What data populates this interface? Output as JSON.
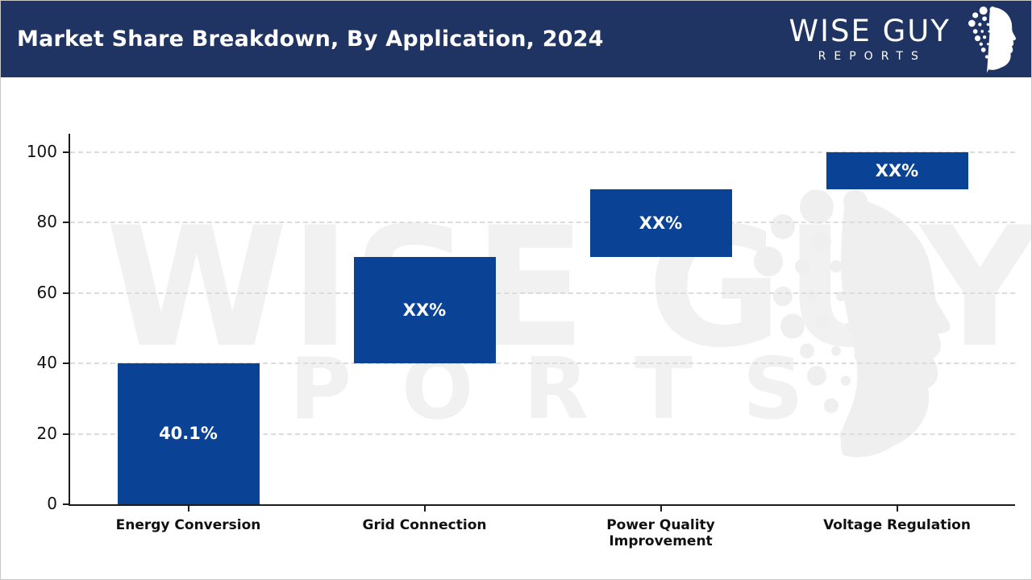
{
  "header": {
    "title": "Market Share Breakdown, By Application, 2024",
    "bg_color": "#1f3462",
    "logo": {
      "line1": "WISE GUY",
      "line2": "REPORTS"
    }
  },
  "watermark": {
    "line1": "WISE GUY",
    "line2": "PORTS"
  },
  "chart_data": {
    "type": "bar",
    "subtype": "waterfall",
    "title": "Market Share Breakdown, By Application, 2024",
    "categories": [
      "Energy Conversion",
      "Grid Connection",
      "Power Quality Improvement",
      "Voltage Regulation"
    ],
    "segments": [
      {
        "label": "Energy Conversion",
        "start": 0,
        "end": 40.1,
        "value_label": "40.1%"
      },
      {
        "label": "Grid Connection",
        "start": 40.1,
        "end": 70.2,
        "value_label": "XX%"
      },
      {
        "label": "Power Quality Improvement",
        "start": 70.2,
        "end": 89.4,
        "value_label": "XX%"
      },
      {
        "label": "Voltage Regulation",
        "start": 89.4,
        "end": 100,
        "value_label": "XX%"
      }
    ],
    "ylim": [
      0,
      100
    ],
    "yticks": [
      0,
      20,
      40,
      60,
      80,
      100
    ],
    "grid": "horizontal-dashed",
    "legend": "none",
    "bar_color": "#0a4296",
    "bar_label_color": "#ffffff",
    "axis_color": "#1c1c1c",
    "gridline_color": "#dcdcdc"
  }
}
